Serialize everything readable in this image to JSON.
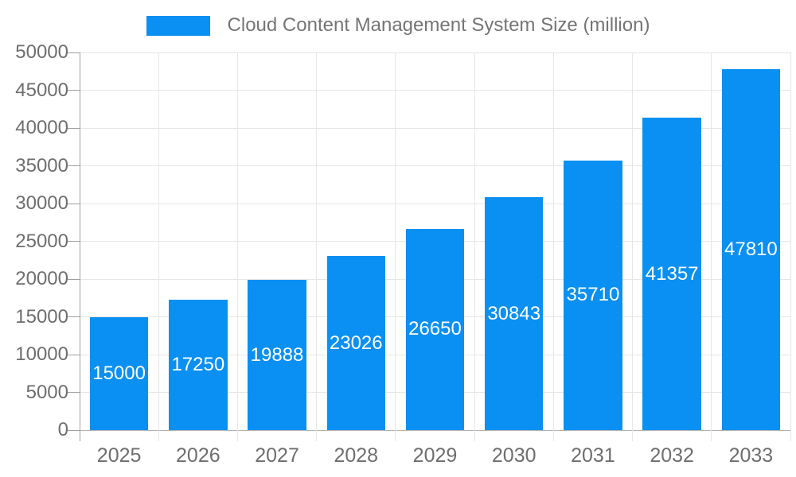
{
  "chart_data": {
    "type": "bar",
    "title": "Cloud Content Management System Size (million)",
    "categories": [
      "2025",
      "2026",
      "2027",
      "2028",
      "2029",
      "2030",
      "2031",
      "2032",
      "2033"
    ],
    "values": [
      15000,
      17250,
      19888,
      23026,
      26650,
      30843,
      35710,
      41357,
      47810
    ],
    "xlabel": "",
    "ylabel": "",
    "ylim": [
      0,
      50000
    ],
    "ytick_step": 5000,
    "yticks": [
      0,
      5000,
      10000,
      15000,
      20000,
      25000,
      30000,
      35000,
      40000,
      45000,
      50000
    ],
    "grid": true,
    "legend_position": "top",
    "bar_labels_inside": true,
    "colors": {
      "bar": "#0a90f2",
      "bar_label": "#ffffff",
      "axis_text": "#6e6e6e",
      "legend_text": "#757575",
      "gridline": "#e6e6e6",
      "axis_line": "#a0a0a0",
      "baseline": "#b3b3b3",
      "background": "#ffffff"
    }
  }
}
